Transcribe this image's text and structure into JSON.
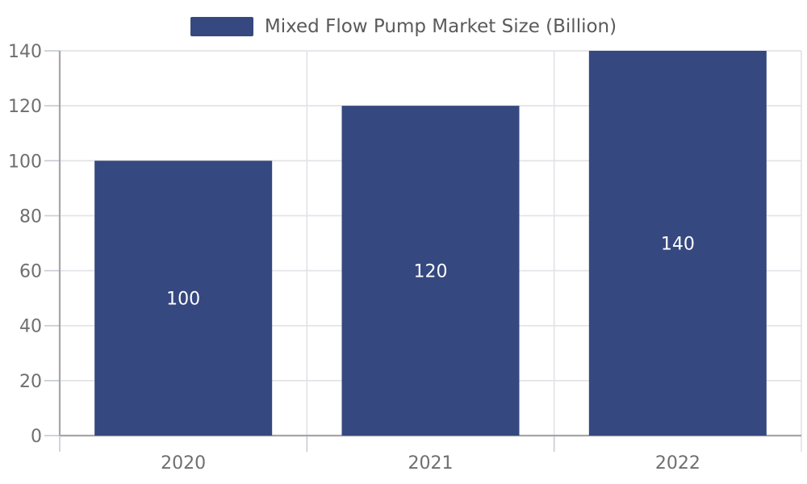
{
  "chart_data": {
    "type": "bar",
    "title": "Mixed Flow Pump Market Size (Billion)",
    "legend": [
      "Mixed Flow Pump Market Size (Billion)"
    ],
    "legend_position": "top-center",
    "categories": [
      "2020",
      "2021",
      "2022"
    ],
    "values": [
      100,
      120,
      140
    ],
    "bar_value_labels": [
      "100",
      "120",
      "140"
    ],
    "xlabel": "",
    "ylabel": "",
    "ylim": [
      0,
      140
    ],
    "yticks": [
      0,
      20,
      40,
      60,
      80,
      100,
      120,
      140
    ],
    "grid": "on"
  },
  "colors": {
    "bar": "#35487F",
    "bar_value_label": "#FFFFFF",
    "legend_text": "#5A5A5A",
    "tick_text": "#6F6F6F",
    "spine": "#A6A6A6",
    "tick_mark": "#C9CDD6",
    "gridline": "#E3E3E8",
    "background": "#FFFFFF"
  }
}
